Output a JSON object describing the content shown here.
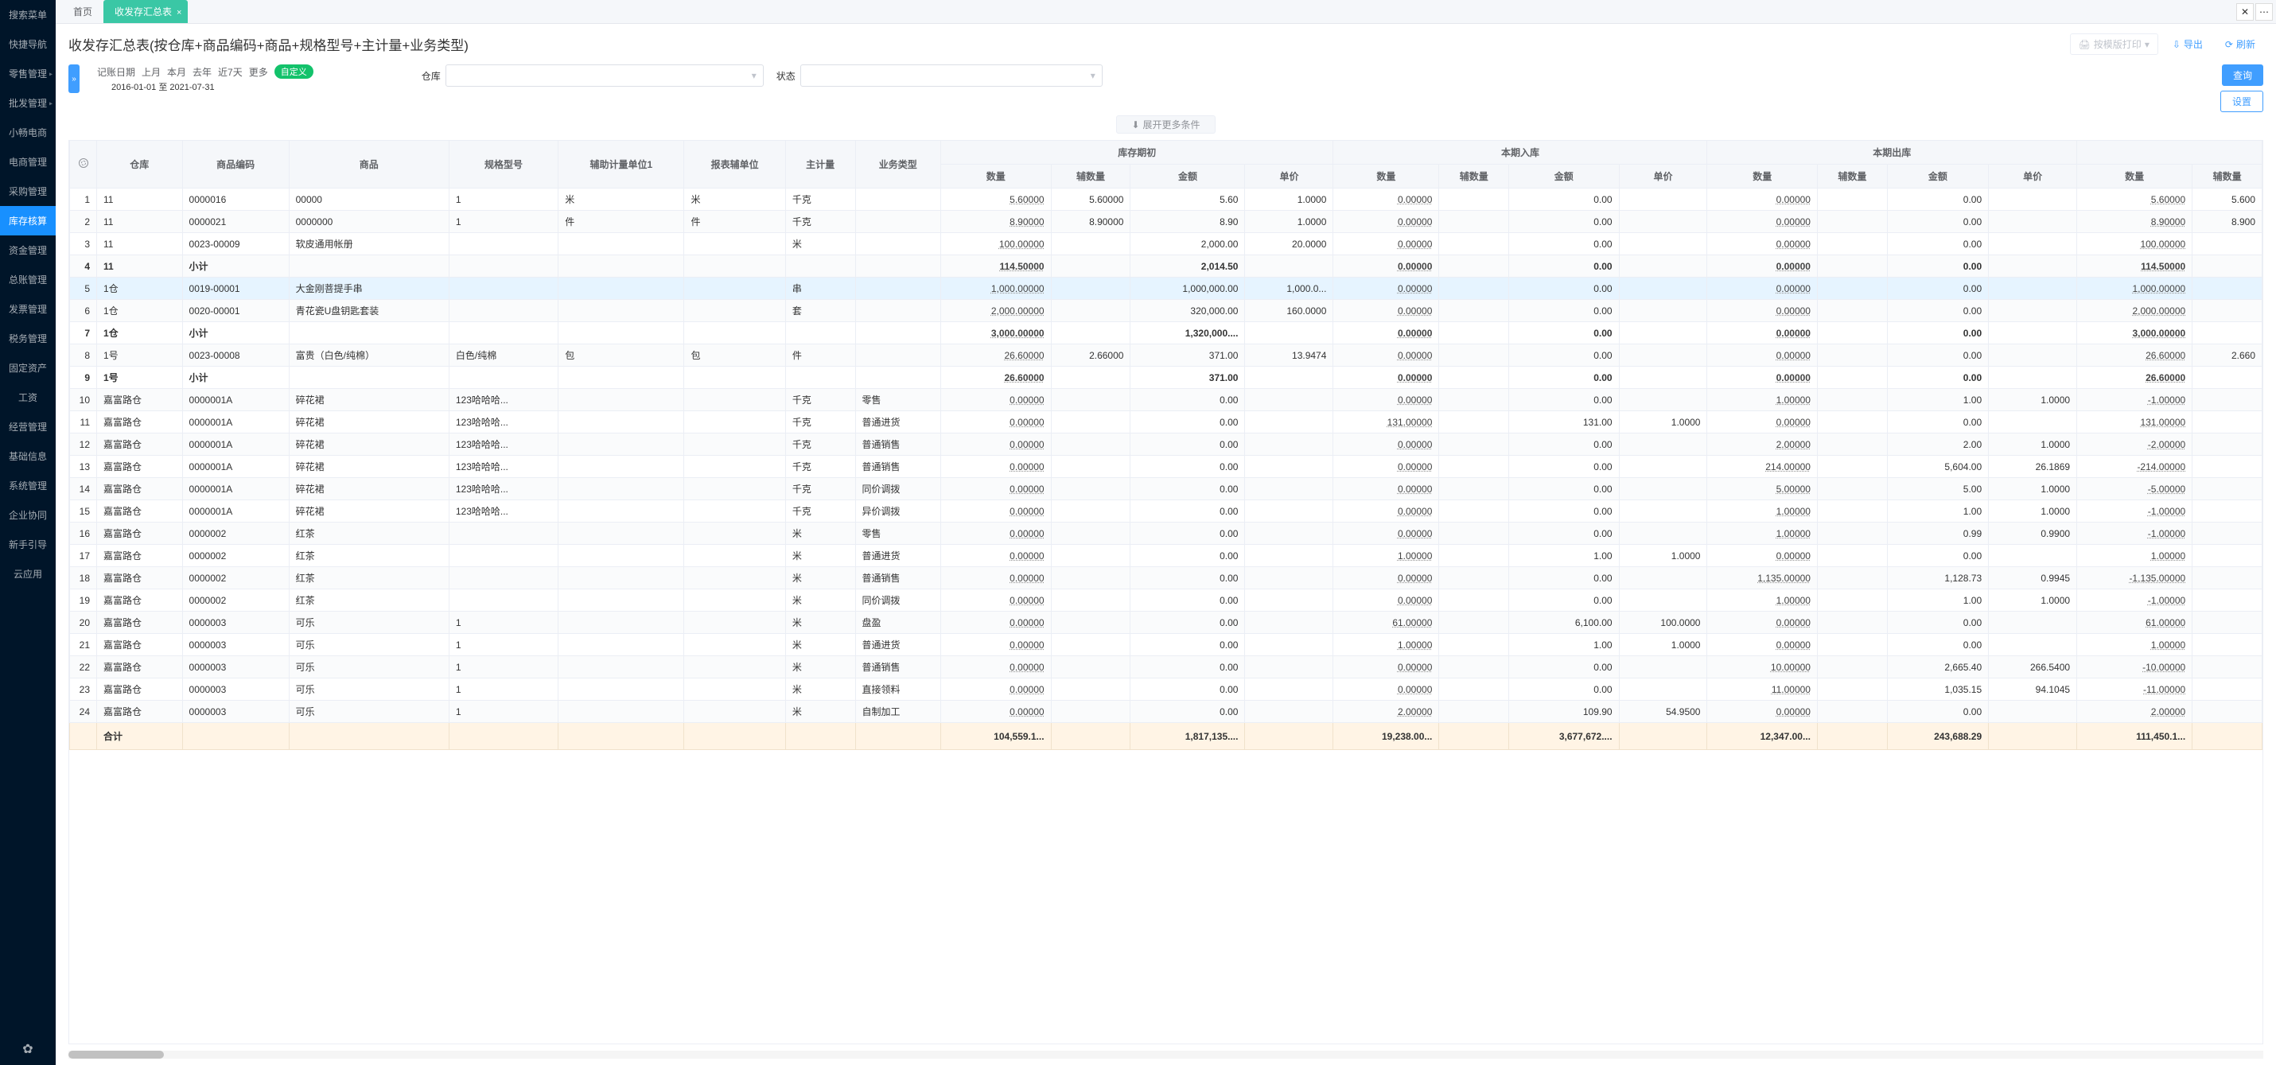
{
  "sidebar": {
    "items": [
      {
        "label": "搜索菜单",
        "caret": false
      },
      {
        "label": "快捷导航",
        "caret": false
      },
      {
        "label": "零售管理",
        "caret": true
      },
      {
        "label": "批发管理",
        "caret": true
      },
      {
        "label": "小畅电商",
        "caret": false
      },
      {
        "label": "电商管理",
        "caret": false
      },
      {
        "label": "采购管理",
        "caret": false
      },
      {
        "label": "库存核算",
        "caret": false,
        "active": true
      },
      {
        "label": "资金管理",
        "caret": false
      },
      {
        "label": "总账管理",
        "caret": false
      },
      {
        "label": "发票管理",
        "caret": false
      },
      {
        "label": "税务管理",
        "caret": false
      },
      {
        "label": "固定资产",
        "caret": false
      },
      {
        "label": "工资",
        "caret": false
      },
      {
        "label": "经营管理",
        "caret": false
      },
      {
        "label": "基础信息",
        "caret": false
      },
      {
        "label": "系统管理",
        "caret": false
      },
      {
        "label": "企业协同",
        "caret": false
      },
      {
        "label": "新手引导",
        "caret": false
      },
      {
        "label": "云应用",
        "caret": false
      }
    ]
  },
  "tabs": {
    "items": [
      {
        "label": "首页",
        "active": false,
        "closable": false
      },
      {
        "label": "收发存汇总表",
        "active": true,
        "closable": true
      }
    ]
  },
  "header": {
    "title": "收发存汇总表(按仓库+商品编码+商品+规格型号+主计量+业务类型)",
    "print": "按模版打印",
    "export": "导出",
    "refresh": "刷新"
  },
  "filters": {
    "dateLabel": "记账日期",
    "presets": [
      "上月",
      "本月",
      "去年",
      "近7天",
      "更多"
    ],
    "custom": "自定义",
    "range": "2016-01-01 至 2021-07-31",
    "warehouseLabel": "仓库",
    "statusLabel": "状态",
    "query": "查询",
    "settings": "设置",
    "expand": "展开更多条件"
  },
  "table": {
    "groupHeaders": [
      "库存期初",
      "本期入库",
      "本期出库"
    ],
    "cols": [
      "仓库",
      "商品编码",
      "商品",
      "规格型号",
      "辅助计量单位1",
      "报表辅单位",
      "主计量",
      "业务类型"
    ],
    "subCols": [
      "数量",
      "辅数量",
      "金额",
      "单价",
      "数量",
      "辅数量",
      "金额",
      "单价",
      "数量",
      "辅数量",
      "金额",
      "单价",
      "数量",
      "辅数量"
    ],
    "rows": [
      {
        "n": 1,
        "c": [
          "11",
          "0000016",
          "00000",
          "1",
          "米",
          "米",
          "千克",
          ""
        ],
        "v": [
          "5.60000",
          "5.60000",
          "5.60",
          "1.0000",
          "0.00000",
          "",
          "0.00",
          "",
          "0.00000",
          "",
          "0.00",
          "",
          "5.60000",
          "5.600"
        ]
      },
      {
        "n": 2,
        "c": [
          "11",
          "0000021",
          "0000000",
          "1",
          "件",
          "件",
          "千克",
          ""
        ],
        "v": [
          "8.90000",
          "8.90000",
          "8.90",
          "1.0000",
          "0.00000",
          "",
          "0.00",
          "",
          "0.00000",
          "",
          "0.00",
          "",
          "8.90000",
          "8.900"
        ]
      },
      {
        "n": 3,
        "c": [
          "11",
          "0023-00009",
          "软皮通用帐册",
          "",
          "",
          "",
          "米",
          ""
        ],
        "v": [
          "100.00000",
          "",
          "2,000.00",
          "20.0000",
          "0.00000",
          "",
          "0.00",
          "",
          "0.00000",
          "",
          "0.00",
          "",
          "100.00000",
          ""
        ]
      },
      {
        "n": 4,
        "sub": true,
        "c": [
          "11",
          "小计",
          "",
          "",
          "",
          "",
          "",
          ""
        ],
        "v": [
          "114.50000",
          "",
          "2,014.50",
          "",
          "0.00000",
          "",
          "0.00",
          "",
          "0.00000",
          "",
          "0.00",
          "",
          "114.50000",
          ""
        ]
      },
      {
        "n": 5,
        "sel": true,
        "c": [
          "1仓",
          "0019-00001",
          "大金刚菩提手串",
          "",
          "",
          "",
          "串",
          ""
        ],
        "v": [
          "1,000.00000",
          "",
          "1,000,000.00",
          "1,000.0...",
          "0.00000",
          "",
          "0.00",
          "",
          "0.00000",
          "",
          "0.00",
          "",
          "1,000.00000",
          ""
        ]
      },
      {
        "n": 6,
        "c": [
          "1仓",
          "0020-00001",
          "青花瓷U盘钥匙套装",
          "",
          "",
          "",
          "套",
          ""
        ],
        "v": [
          "2,000.00000",
          "",
          "320,000.00",
          "160.0000",
          "0.00000",
          "",
          "0.00",
          "",
          "0.00000",
          "",
          "0.00",
          "",
          "2,000.00000",
          ""
        ]
      },
      {
        "n": 7,
        "sub": true,
        "c": [
          "1仓",
          "小计",
          "",
          "",
          "",
          "",
          "",
          ""
        ],
        "v": [
          "3,000.00000",
          "",
          "1,320,000....",
          "",
          "0.00000",
          "",
          "0.00",
          "",
          "0.00000",
          "",
          "0.00",
          "",
          "3,000.00000",
          ""
        ]
      },
      {
        "n": 8,
        "c": [
          "1号",
          "0023-00008",
          "富贵（白色/纯棉）",
          "白色/纯棉",
          "包",
          "包",
          "件",
          ""
        ],
        "v": [
          "26.60000",
          "2.66000",
          "371.00",
          "13.9474",
          "0.00000",
          "",
          "0.00",
          "",
          "0.00000",
          "",
          "0.00",
          "",
          "26.60000",
          "2.660"
        ]
      },
      {
        "n": 9,
        "sub": true,
        "c": [
          "1号",
          "小计",
          "",
          "",
          "",
          "",
          "",
          ""
        ],
        "v": [
          "26.60000",
          "",
          "371.00",
          "",
          "0.00000",
          "",
          "0.00",
          "",
          "0.00000",
          "",
          "0.00",
          "",
          "26.60000",
          ""
        ]
      },
      {
        "n": 10,
        "c": [
          "嘉富路仓",
          "0000001A",
          "碎花裙",
          "123哈哈哈...",
          "",
          "",
          "千克",
          "零售"
        ],
        "v": [
          "0.00000",
          "",
          "0.00",
          "",
          "0.00000",
          "",
          "0.00",
          "",
          "1.00000",
          "",
          "1.00",
          "1.0000",
          "-1.00000",
          ""
        ],
        "neg": [
          12
        ]
      },
      {
        "n": 11,
        "c": [
          "嘉富路仓",
          "0000001A",
          "碎花裙",
          "123哈哈哈...",
          "",
          "",
          "千克",
          "普通进货"
        ],
        "v": [
          "0.00000",
          "",
          "0.00",
          "",
          "131.00000",
          "",
          "131.00",
          "1.0000",
          "0.00000",
          "",
          "0.00",
          "",
          "131.00000",
          ""
        ]
      },
      {
        "n": 12,
        "c": [
          "嘉富路仓",
          "0000001A",
          "碎花裙",
          "123哈哈哈...",
          "",
          "",
          "千克",
          "普通销售"
        ],
        "v": [
          "0.00000",
          "",
          "0.00",
          "",
          "0.00000",
          "",
          "0.00",
          "",
          "2.00000",
          "",
          "2.00",
          "1.0000",
          "-2.00000",
          ""
        ],
        "neg": [
          12
        ]
      },
      {
        "n": 13,
        "c": [
          "嘉富路仓",
          "0000001A",
          "碎花裙",
          "123哈哈哈...",
          "",
          "",
          "千克",
          "普通销售"
        ],
        "v": [
          "0.00000",
          "",
          "0.00",
          "",
          "0.00000",
          "",
          "0.00",
          "",
          "214.00000",
          "",
          "5,604.00",
          "26.1869",
          "-214.00000",
          ""
        ],
        "neg": [
          12
        ]
      },
      {
        "n": 14,
        "c": [
          "嘉富路仓",
          "0000001A",
          "碎花裙",
          "123哈哈哈...",
          "",
          "",
          "千克",
          "同价调拨"
        ],
        "v": [
          "0.00000",
          "",
          "0.00",
          "",
          "0.00000",
          "",
          "0.00",
          "",
          "5.00000",
          "",
          "5.00",
          "1.0000",
          "-5.00000",
          ""
        ],
        "neg": [
          12
        ]
      },
      {
        "n": 15,
        "c": [
          "嘉富路仓",
          "0000001A",
          "碎花裙",
          "123哈哈哈...",
          "",
          "",
          "千克",
          "异价调拨"
        ],
        "v": [
          "0.00000",
          "",
          "0.00",
          "",
          "0.00000",
          "",
          "0.00",
          "",
          "1.00000",
          "",
          "1.00",
          "1.0000",
          "-1.00000",
          ""
        ],
        "neg": [
          12
        ]
      },
      {
        "n": 16,
        "c": [
          "嘉富路仓",
          "0000002",
          "红茶",
          "",
          "",
          "",
          "米",
          "零售"
        ],
        "v": [
          "0.00000",
          "",
          "0.00",
          "",
          "0.00000",
          "",
          "0.00",
          "",
          "1.00000",
          "",
          "0.99",
          "0.9900",
          "-1.00000",
          ""
        ],
        "neg": [
          12
        ]
      },
      {
        "n": 17,
        "c": [
          "嘉富路仓",
          "0000002",
          "红茶",
          "",
          "",
          "",
          "米",
          "普通进货"
        ],
        "v": [
          "0.00000",
          "",
          "0.00",
          "",
          "1.00000",
          "",
          "1.00",
          "1.0000",
          "0.00000",
          "",
          "0.00",
          "",
          "1.00000",
          ""
        ]
      },
      {
        "n": 18,
        "c": [
          "嘉富路仓",
          "0000002",
          "红茶",
          "",
          "",
          "",
          "米",
          "普通销售"
        ],
        "v": [
          "0.00000",
          "",
          "0.00",
          "",
          "0.00000",
          "",
          "0.00",
          "",
          "1,135.00000",
          "",
          "1,128.73",
          "0.9945",
          "-1,135.00000",
          ""
        ],
        "neg": [
          12
        ]
      },
      {
        "n": 19,
        "c": [
          "嘉富路仓",
          "0000002",
          "红茶",
          "",
          "",
          "",
          "米",
          "同价调拨"
        ],
        "v": [
          "0.00000",
          "",
          "0.00",
          "",
          "0.00000",
          "",
          "0.00",
          "",
          "1.00000",
          "",
          "1.00",
          "1.0000",
          "-1.00000",
          ""
        ],
        "neg": [
          12
        ]
      },
      {
        "n": 20,
        "c": [
          "嘉富路仓",
          "0000003",
          "可乐",
          "1",
          "",
          "",
          "米",
          "盘盈"
        ],
        "v": [
          "0.00000",
          "",
          "0.00",
          "",
          "61.00000",
          "",
          "6,100.00",
          "100.0000",
          "0.00000",
          "",
          "0.00",
          "",
          "61.00000",
          ""
        ]
      },
      {
        "n": 21,
        "c": [
          "嘉富路仓",
          "0000003",
          "可乐",
          "1",
          "",
          "",
          "米",
          "普通进货"
        ],
        "v": [
          "0.00000",
          "",
          "0.00",
          "",
          "1.00000",
          "",
          "1.00",
          "1.0000",
          "0.00000",
          "",
          "0.00",
          "",
          "1.00000",
          ""
        ]
      },
      {
        "n": 22,
        "c": [
          "嘉富路仓",
          "0000003",
          "可乐",
          "1",
          "",
          "",
          "米",
          "普通销售"
        ],
        "v": [
          "0.00000",
          "",
          "0.00",
          "",
          "0.00000",
          "",
          "0.00",
          "",
          "10.00000",
          "",
          "2,665.40",
          "266.5400",
          "-10.00000",
          ""
        ],
        "neg": [
          12
        ]
      },
      {
        "n": 23,
        "c": [
          "嘉富路仓",
          "0000003",
          "可乐",
          "1",
          "",
          "",
          "米",
          "直接领料"
        ],
        "v": [
          "0.00000",
          "",
          "0.00",
          "",
          "0.00000",
          "",
          "0.00",
          "",
          "11.00000",
          "",
          "1,035.15",
          "94.1045",
          "-11.00000",
          ""
        ],
        "neg": [
          12
        ]
      },
      {
        "n": 24,
        "c": [
          "嘉富路仓",
          "0000003",
          "可乐",
          "1",
          "",
          "",
          "米",
          "自制加工"
        ],
        "v": [
          "0.00000",
          "",
          "0.00",
          "",
          "2.00000",
          "",
          "109.90",
          "54.9500",
          "0.00000",
          "",
          "0.00",
          "",
          "2.00000",
          ""
        ]
      }
    ],
    "total": {
      "label": "合计",
      "v": [
        "104,559.1...",
        "",
        "1,817,135....",
        "",
        "19,238.00...",
        "",
        "3,677,672....",
        "",
        "12,347.00...",
        "",
        "243,688.29",
        "",
        "111,450.1...",
        ""
      ]
    }
  }
}
